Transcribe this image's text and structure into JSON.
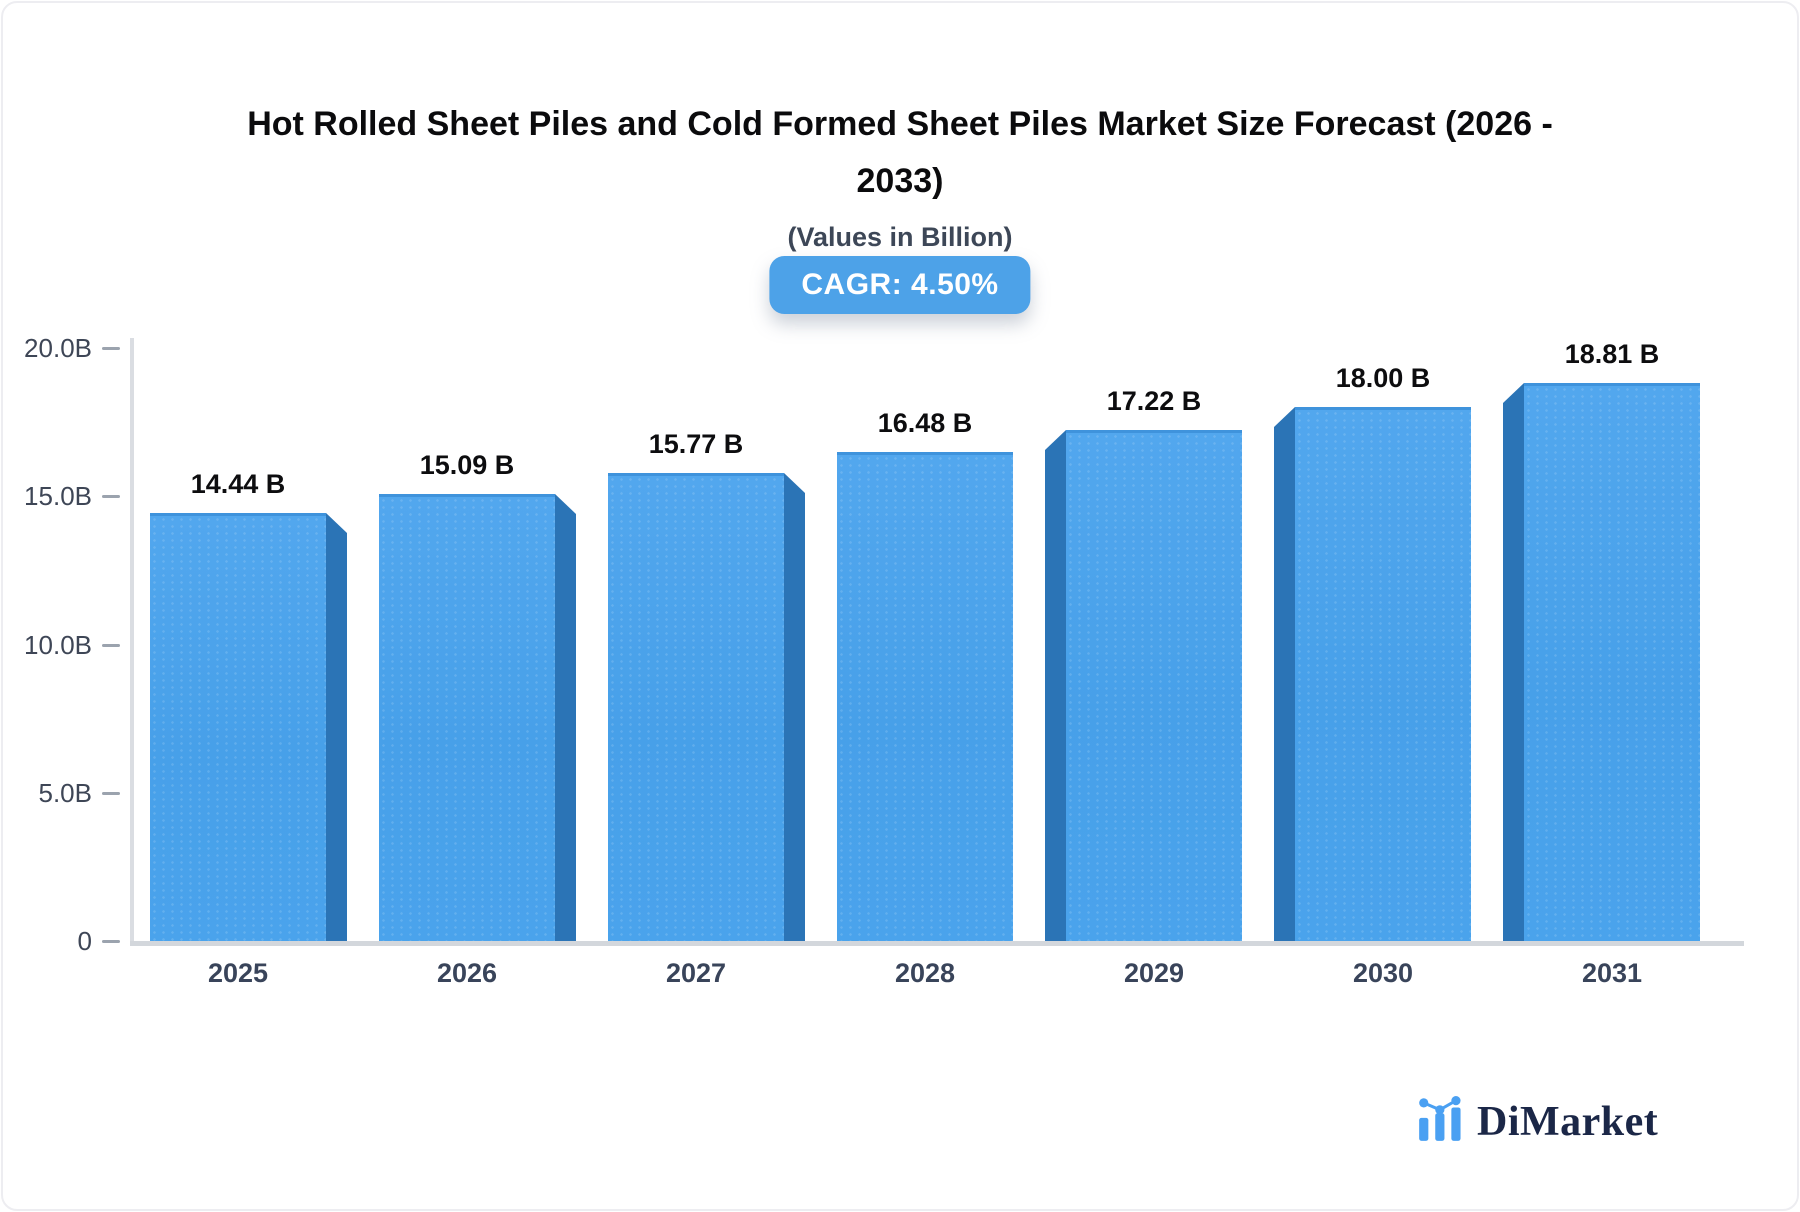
{
  "header": {
    "title_line1": "Hot Rolled Sheet Piles and Cold Formed Sheet Piles Market Size Forecast (2026 -",
    "title_line2": "2033)",
    "subtitle": "(Values in Billion)",
    "cagr_badge": "CAGR: 4.50%"
  },
  "chart_data": {
    "type": "bar",
    "title": "Hot Rolled Sheet Piles and Cold Formed Sheet Piles Market Size Forecast (2026 - 2033)",
    "subtitle": "(Values in Billion)",
    "cagr_percent": 4.5,
    "categories": [
      "2025",
      "2026",
      "2027",
      "2028",
      "2029",
      "2030",
      "2031"
    ],
    "values": [
      14.44,
      15.09,
      15.77,
      16.48,
      17.22,
      18.0,
      18.81
    ],
    "value_labels": [
      "14.44 B",
      "15.09 B",
      "15.77 B",
      "16.48 B",
      "17.22 B",
      "18.00 B",
      "18.81 B"
    ],
    "xlabel": "",
    "ylabel": "",
    "ylim": [
      0,
      20
    ],
    "yticks": [
      {
        "label": "20.0B",
        "value": 20
      },
      {
        "label": "15.0B",
        "value": 15
      },
      {
        "label": "10.0B",
        "value": 10
      },
      {
        "label": "5.0B",
        "value": 5
      },
      {
        "label": "0",
        "value": 0
      }
    ],
    "grid": false,
    "legend": "none",
    "bar_color": "#4aa2ec",
    "bar_side_color": "#2b74b6",
    "badge_color": "#4da2e8"
  },
  "footer": {
    "brand": "DiMarket",
    "logo_icon": "bar-chart-with-trend-dots",
    "logo_blue": "#4aa0f2",
    "logo_text_color": "#1b2747"
  }
}
